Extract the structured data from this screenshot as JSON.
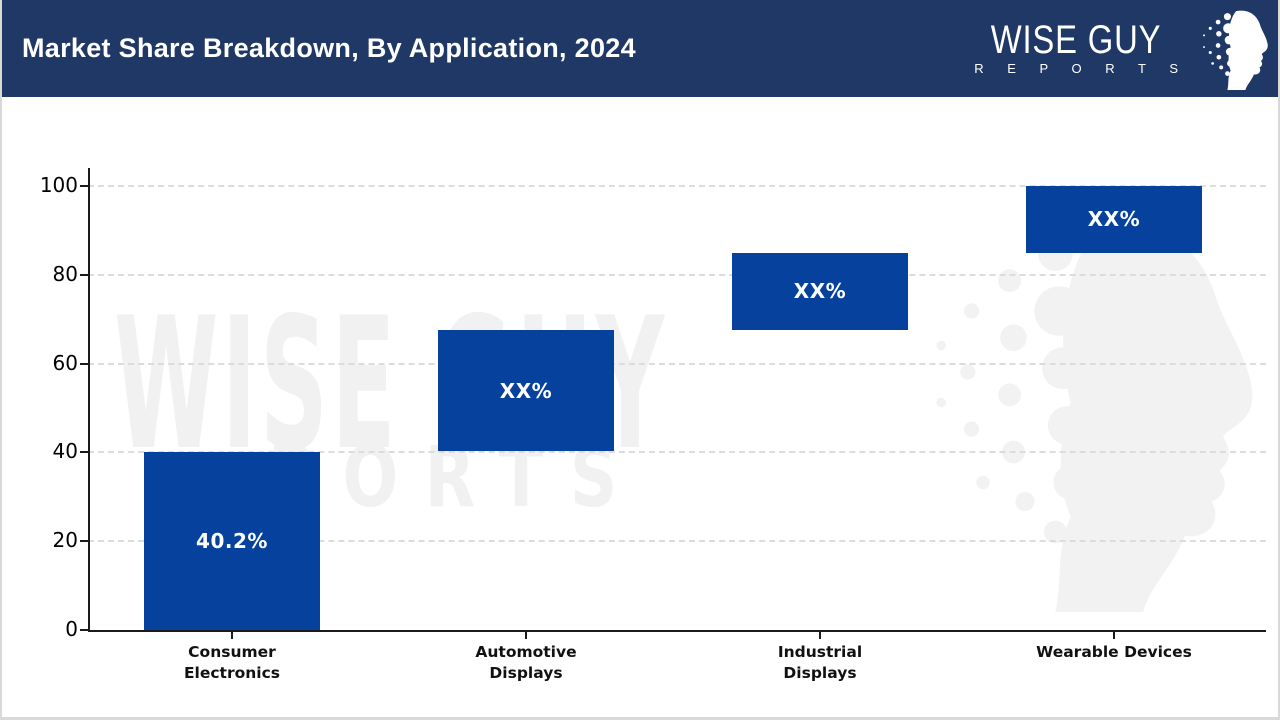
{
  "header": {
    "title": "Market Share Breakdown, By Application, 2024",
    "bg_color": "#1f3865",
    "logo": {
      "line1": "WISE GUY",
      "line2": "REPORTS"
    }
  },
  "watermark": {
    "line1": "WISE GUY",
    "line2": "PORTS"
  },
  "chart_data": {
    "type": "bar",
    "subtype": "floating-waterfall",
    "title": "Market Share Breakdown, By Application, 2024",
    "xlabel": "",
    "ylabel": "",
    "categories": [
      "Consumer\nElectronics",
      "Automotive\nDisplays",
      "Industrial\nDisplays",
      "Wearable Devices"
    ],
    "segments": [
      {
        "category": "Consumer Electronics",
        "start": 0,
        "end": 40.2,
        "label": "40.2%"
      },
      {
        "category": "Automotive Displays",
        "start": 40.2,
        "end": 67.6,
        "label": "XX%"
      },
      {
        "category": "Industrial Displays",
        "start": 67.6,
        "end": 85.0,
        "label": "XX%"
      },
      {
        "category": "Wearable Devices",
        "start": 85.0,
        "end": 100.0,
        "label": "XX%"
      }
    ],
    "y_ticks": [
      0,
      20,
      40,
      60,
      80,
      100
    ],
    "ylim": [
      0,
      105
    ],
    "grid": "horizontal-dashed",
    "legend": "none",
    "bar_color": "#05419d",
    "grid_color": "#dcdcdc"
  }
}
